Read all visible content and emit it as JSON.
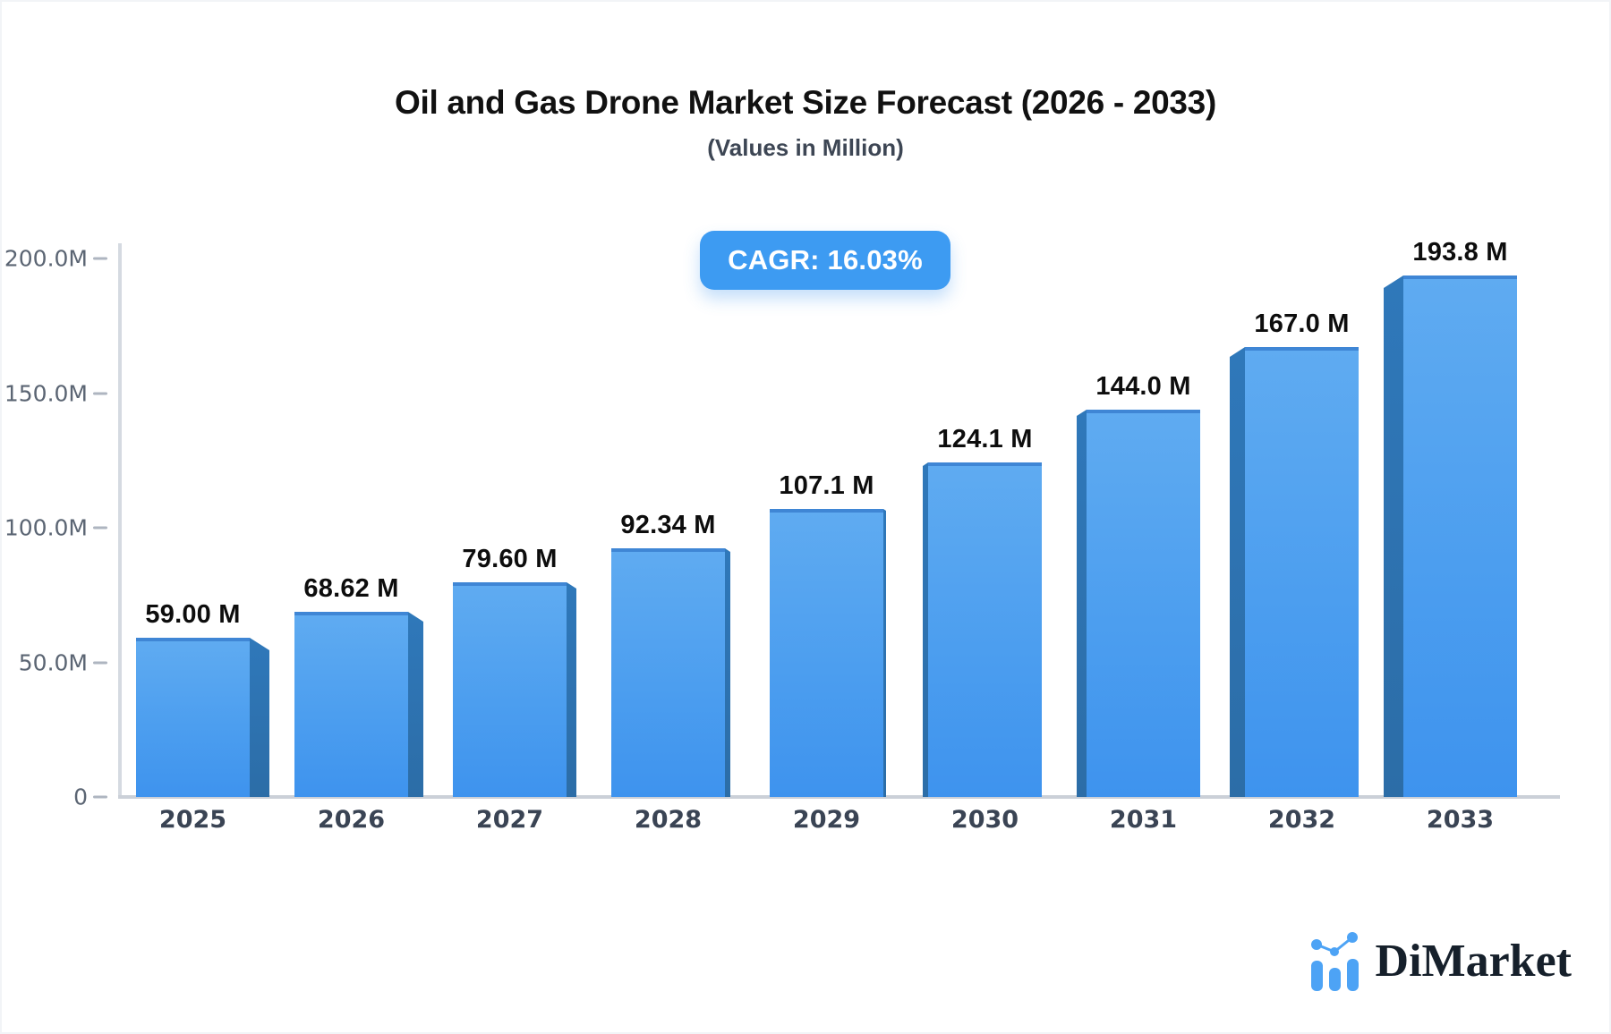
{
  "header": {
    "title": "Oil and Gas Drone Market Size Forecast (2026 - 2033)",
    "subtitle": "(Values in Million)"
  },
  "badge": {
    "label": "CAGR: 16.03%"
  },
  "chart_data": {
    "type": "bar",
    "title": "Oil and Gas Drone Market Size Forecast (2026 - 2033)",
    "subtitle": "(Values in Million)",
    "categories": [
      "2025",
      "2026",
      "2027",
      "2028",
      "2029",
      "2030",
      "2031",
      "2032",
      "2033"
    ],
    "values": [
      59.0,
      68.62,
      79.6,
      92.34,
      107.1,
      124.1,
      144.0,
      167.0,
      193.8
    ],
    "value_labels": [
      "59.00 M",
      "68.62 M",
      "79.60 M",
      "92.34 M",
      "107.1 M",
      "124.1 M",
      "144.0 M",
      "167.0 M",
      "193.8 M"
    ],
    "unit": "M",
    "ylim": [
      0,
      200
    ],
    "ytick_labels": [
      "0",
      "50.0M",
      "100.0M",
      "150.0M",
      "200.0M"
    ],
    "ytick_values": [
      0,
      50,
      100,
      150,
      200
    ],
    "grid": false,
    "legend": null,
    "annotation": "CAGR: 16.03%",
    "bar_style": "3d-perspective-toward-center"
  },
  "logo": {
    "text": "DiMarket",
    "icon": "bar-chart-sparkline-icon"
  },
  "colors": {
    "background": "#FFFFFF",
    "bar_face_top": "#5FABF1",
    "bar_face_mid": "#4C9EEF",
    "bar_face_bottom": "#3E93EE",
    "bar_top_edge": "#3F86D5",
    "bar_side_top": "#2F78BA",
    "bar_side_bottom": "#2C6DA7",
    "badge_bg": "#3D9BF2",
    "badge_text": "#FFFFFF",
    "axis_line": "#D5DAE1",
    "baseline": "#CBD0D8",
    "tick_dash": "#AEB5C0",
    "tick_text": "#5B6573",
    "year_text": "#3A4454",
    "value_text": "#0D0D0D",
    "title_text": "#111111",
    "subtitle_text": "#3D4654",
    "logo_text": "#16202B",
    "logo_icon": "#4DA3F5"
  }
}
